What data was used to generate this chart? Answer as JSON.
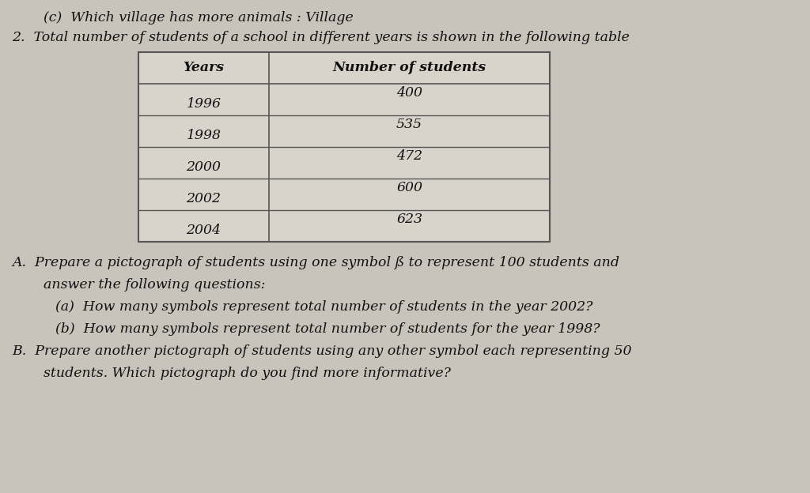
{
  "title_top": "(c)  Which village has more animals : Village",
  "question_text": "2.  Total number of students of a school in different years is shown in the following table",
  "table_header_col1": "Years",
  "table_header_col2": "Number of students",
  "years": [
    "1996",
    "1998",
    "2000",
    "2002",
    "2004"
  ],
  "students": [
    "400",
    "535",
    "472",
    "600",
    "623"
  ],
  "line_A1": "A.  Prepare a pictograph of students using one symbol ß to represent 100 students and",
  "line_A2": "answer the following questions:",
  "line_Aa": "(a)  How many symbols represent total number of students in the year 2002?",
  "line_Ab": "(b)  How many symbols represent total number of students for the year 1998?",
  "line_B1": "B.  Prepare another pictograph of students using any other symbol each representing 50",
  "line_B2": "students. Which pictograph do you find more informative?",
  "bg_color": "#c8c4bc",
  "table_bg": "#d8d4cc",
  "border_color": "#555555",
  "text_color": "#111111",
  "font_size_body": 12.5,
  "font_size_table": 12.5,
  "font_size_header": 12.5
}
